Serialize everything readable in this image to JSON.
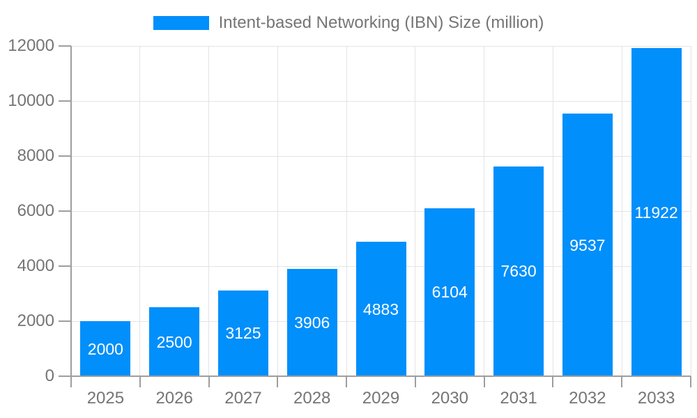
{
  "chart_data": {
    "type": "bar",
    "title": "Intent-based Networking (IBN) Size (million)",
    "categories": [
      "2025",
      "2026",
      "2027",
      "2028",
      "2029",
      "2030",
      "2031",
      "2032",
      "2033"
    ],
    "series": [
      {
        "name": "Intent-based Networking (IBN) Size (million)",
        "values": [
          2000,
          2500,
          3125,
          3906,
          4883,
          6104,
          7630,
          9537,
          11922
        ],
        "color": "#008FFB"
      }
    ],
    "xlabel": "",
    "ylabel": "",
    "ylim": [
      0,
      12000
    ],
    "yticks": [
      0,
      2000,
      4000,
      6000,
      8000,
      10000,
      12000
    ],
    "grid": true,
    "legend_position": "top-center",
    "value_label_position": "inside-center",
    "colors": {
      "bar": "#008FFB",
      "axis_text": "#757575",
      "value_label": "#ffffff",
      "grid_line": "#e4e4e4",
      "axis_line": "#9e9e9e",
      "background": "#ffffff"
    }
  }
}
